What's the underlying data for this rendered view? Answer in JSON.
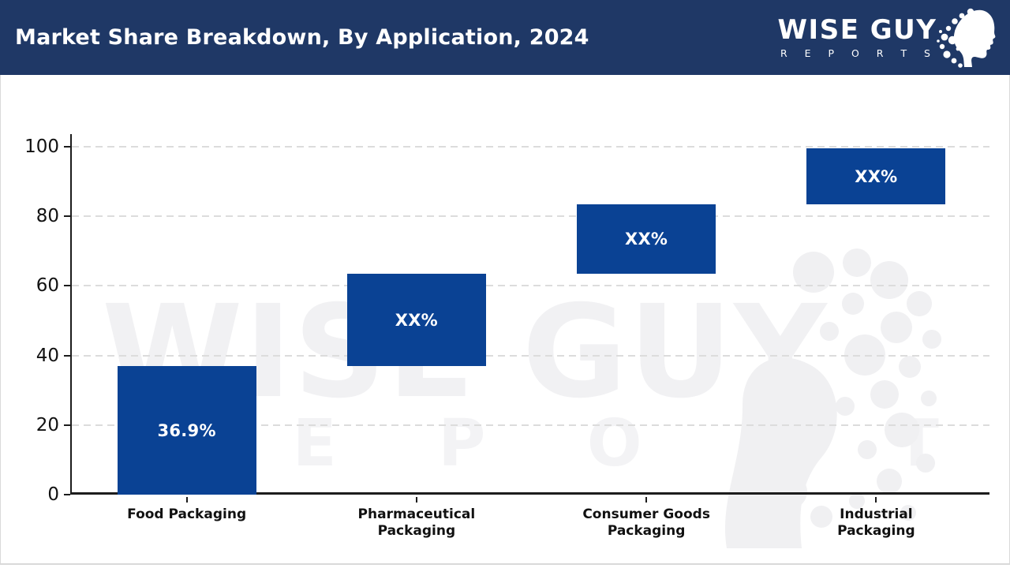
{
  "header": {
    "title": "Market Share Breakdown, By Application, 2024",
    "logo": {
      "brand_line1": "WISE GUY",
      "brand_line2": "R E P O R T S"
    }
  },
  "watermark": {
    "line1": "WISE GUY",
    "line2": "R E P O R T S"
  },
  "chart_data": {
    "type": "bar",
    "subtype": "waterfall",
    "title": "Market Share Breakdown, By Application, 2024",
    "categories": [
      "Food Packaging",
      "Pharmaceutical\nPackaging",
      "Consumer Goods\nPackaging",
      "Industrial\nPackaging"
    ],
    "segments": [
      {
        "category": "Food Packaging",
        "start": 0,
        "end": 36.9,
        "label": "36.9%"
      },
      {
        "category": "Pharmaceutical Packaging",
        "start": 36.9,
        "end": 63.5,
        "label": "XX%"
      },
      {
        "category": "Consumer Goods Packaging",
        "start": 63.5,
        "end": 83.4,
        "label": "XX%"
      },
      {
        "category": "Industrial Packaging",
        "start": 83.4,
        "end": 99.5,
        "label": "XX%"
      }
    ],
    "yticks": [
      0,
      20,
      40,
      60,
      80,
      100
    ],
    "ylim": [
      0,
      103.6
    ],
    "xlabel": "",
    "ylabel": "",
    "grid": "horizontal-dashed",
    "legend": "none",
    "bar_color": "#0a4294",
    "bar_label_color": "#ffffff"
  },
  "colors": {
    "header_bg": "#1f3866",
    "bar": "#0a4294",
    "axis": "#1c1c1c",
    "gridline": "#dcdcdc",
    "page_bg": "#ffffff",
    "watermark": "#f1f1f3"
  }
}
